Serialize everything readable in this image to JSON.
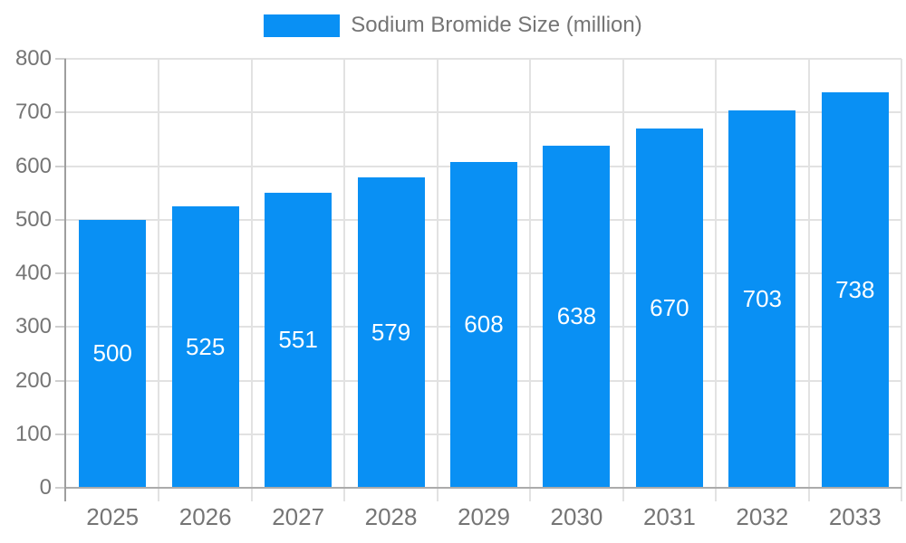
{
  "chart_data": {
    "type": "bar",
    "title": "",
    "legend": {
      "label": "Sodium Bromide Size (million)",
      "position": "top"
    },
    "categories": [
      "2025",
      "2026",
      "2027",
      "2028",
      "2029",
      "2030",
      "2031",
      "2032",
      "2033"
    ],
    "series": [
      {
        "name": "Sodium Bromide Size (million)",
        "values": [
          500,
          525,
          551,
          579,
          608,
          638,
          670,
          703,
          738
        ]
      }
    ],
    "xlabel": "",
    "ylabel": "",
    "ylim": [
      0,
      800
    ],
    "ytick_step": 100,
    "grid": true,
    "bar_value_labels": true
  },
  "colors": {
    "bar": "#0990f4",
    "axis_text": "#757575",
    "legend_text": "#757575",
    "axis_line": "#9e9e9e",
    "baseline": "#ababab",
    "gridline": "#e2e2e2",
    "tick": "#cfcfcf",
    "bar_value_text": "#ffffff",
    "background": "#ffffff"
  }
}
